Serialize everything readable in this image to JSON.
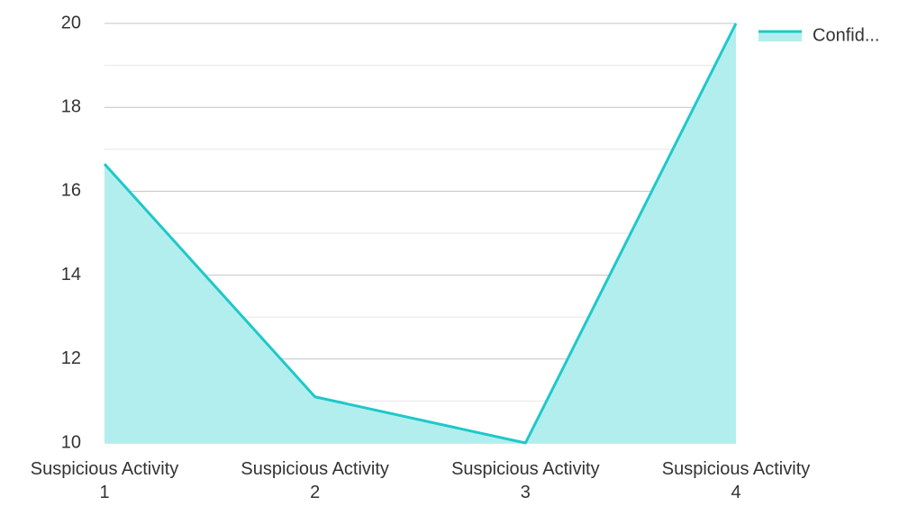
{
  "chart_data": {
    "type": "area",
    "categories": [
      "Suspicious Activity 1",
      "Suspicious Activity 2",
      "Suspicious Activity 3",
      "Suspicious Activity 4"
    ],
    "series": [
      {
        "name": "Confid...",
        "color": "#1fc8c8",
        "fill": "#b3eeee",
        "values": [
          16.65,
          11.1,
          10,
          20
        ]
      }
    ],
    "ylim": [
      10,
      20
    ],
    "yticks": [
      10,
      12,
      14,
      16,
      18,
      20
    ],
    "grid": true,
    "legend": "top-right"
  }
}
